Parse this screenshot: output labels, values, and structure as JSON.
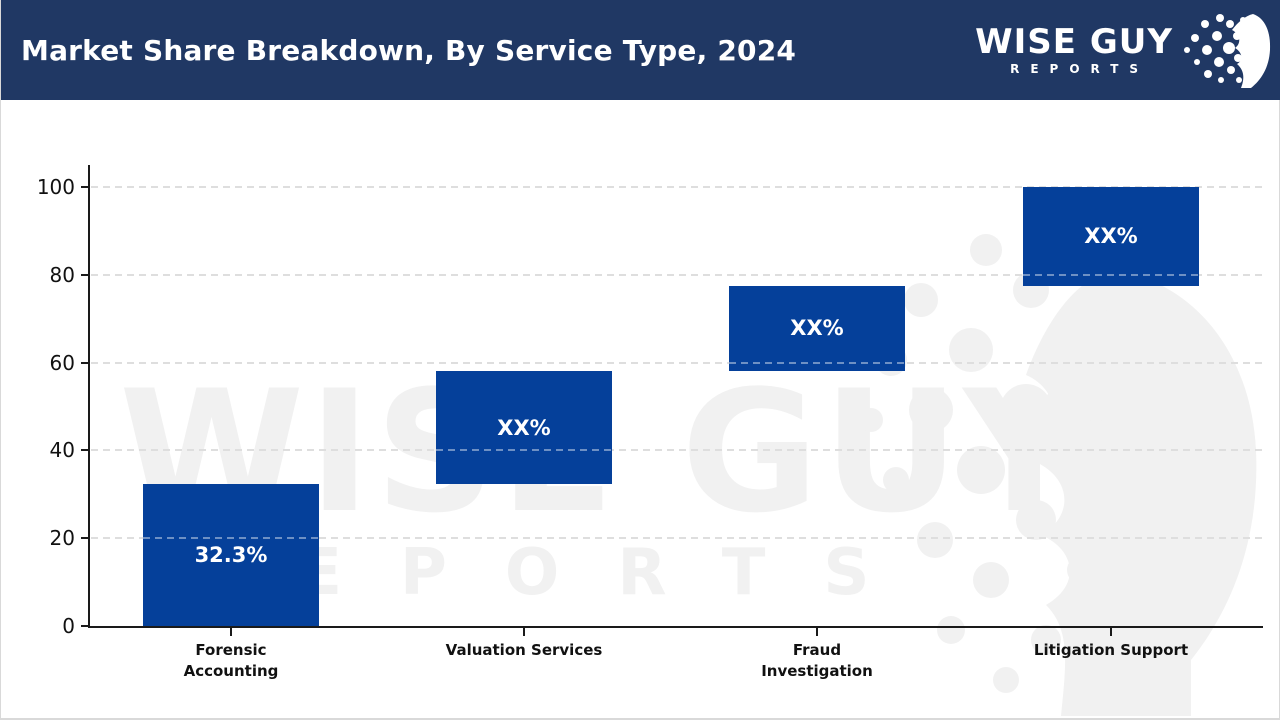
{
  "header": {
    "title": "Market Share Breakdown, By Service Type, 2024",
    "logo": {
      "line1": "WISE GUY",
      "line2": "REPORTS"
    }
  },
  "watermark": {
    "line1": "WISE GUY",
    "line2": "REPORTS"
  },
  "colors": {
    "header_bg": "#203864",
    "bar_blue": "#05409a",
    "gridline_gray": "#dedede",
    "watermark_gray": "#f1f1f1",
    "text_black": "#111111",
    "label_white": "#ffffff"
  },
  "chart_data": {
    "type": "bar",
    "subtype": "waterfall",
    "title": "Market Share Breakdown, By Service Type, 2024",
    "categories": [
      "Forensic\nAccounting",
      "Valuation Services",
      "Fraud\nInvestigation",
      "Litigation Support"
    ],
    "segments": [
      [
        0,
        32.3
      ],
      [
        32.3,
        58.1
      ],
      [
        58.1,
        77.5
      ],
      [
        77.5,
        100
      ]
    ],
    "bar_labels": [
      "32.3%",
      "XX%",
      "XX%",
      "XX%"
    ],
    "y_ticks": [
      0,
      20,
      40,
      60,
      80,
      100
    ],
    "ylim": [
      0,
      105
    ],
    "xlabel": "",
    "ylabel": "",
    "grid": "dashed-horizontal",
    "legend": "none"
  }
}
